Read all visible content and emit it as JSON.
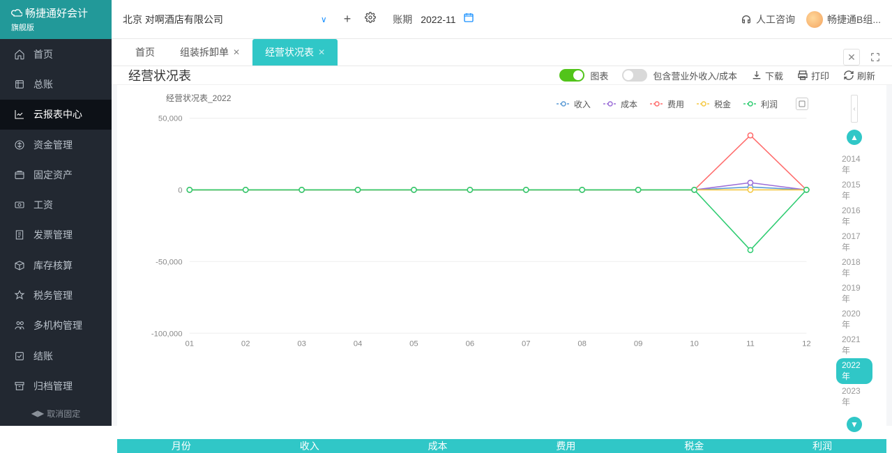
{
  "header": {
    "logo": "畅捷通好会计",
    "logo_sub": "旗舰版",
    "company": "北京 对啊酒店有限公司",
    "period_label": "账期",
    "period_value": "2022-11",
    "consult": "人工咨询",
    "user": "畅捷通B组..."
  },
  "sidebar": {
    "items": [
      {
        "icon": "home",
        "label": "首页"
      },
      {
        "icon": "ledger",
        "label": "总账"
      },
      {
        "icon": "report",
        "label": "云报表中心"
      },
      {
        "icon": "fund",
        "label": "资金管理"
      },
      {
        "icon": "asset",
        "label": "固定资产"
      },
      {
        "icon": "salary",
        "label": "工资"
      },
      {
        "icon": "invoice",
        "label": "发票管理"
      },
      {
        "icon": "stock",
        "label": "库存核算"
      },
      {
        "icon": "tax",
        "label": "税务管理"
      },
      {
        "icon": "org",
        "label": "多机构管理"
      },
      {
        "icon": "close-period",
        "label": "结账"
      },
      {
        "icon": "archive",
        "label": "归档管理"
      }
    ],
    "active_index": 2,
    "pin_label": "取消固定"
  },
  "tabs": {
    "items": [
      {
        "label": "首页",
        "closable": false
      },
      {
        "label": "组装拆卸单",
        "closable": true
      },
      {
        "label": "经营状况表",
        "closable": true
      }
    ],
    "active_index": 2
  },
  "page": {
    "title": "经营状况表",
    "toggle_chart": {
      "label": "图表",
      "on": true
    },
    "toggle_other": {
      "label": "包含营业外收入/成本",
      "on": false
    },
    "download": "下载",
    "print": "打印",
    "refresh": "刷新"
  },
  "chart": {
    "title": "经营状况表_2022",
    "type": "line",
    "categories": [
      "01",
      "02",
      "03",
      "04",
      "05",
      "06",
      "07",
      "08",
      "09",
      "10",
      "11",
      "12"
    ],
    "ylim": [
      -100000,
      50000
    ],
    "yticks": [
      -100000,
      -50000,
      0,
      50000
    ],
    "ytick_labels": [
      "-100,000",
      "-50,000",
      "0",
      "50,000"
    ],
    "series": [
      {
        "name": "收入",
        "color": "#5b9bd5",
        "values": [
          0,
          0,
          0,
          0,
          0,
          0,
          0,
          0,
          0,
          0,
          2000,
          0
        ]
      },
      {
        "name": "成本",
        "color": "#9b6dd7",
        "values": [
          0,
          0,
          0,
          0,
          0,
          0,
          0,
          0,
          0,
          0,
          5000,
          0
        ]
      },
      {
        "name": "费用",
        "color": "#ff6b6b",
        "values": [
          0,
          0,
          0,
          0,
          0,
          0,
          0,
          0,
          0,
          0,
          38000,
          0
        ]
      },
      {
        "name": "税金",
        "color": "#f5c842",
        "values": [
          0,
          0,
          0,
          0,
          0,
          0,
          0,
          0,
          0,
          0,
          0,
          0
        ]
      },
      {
        "name": "利润",
        "color": "#2ecc71",
        "values": [
          0,
          0,
          0,
          0,
          0,
          0,
          0,
          0,
          0,
          0,
          -42000,
          0
        ]
      }
    ],
    "grid_color": "#eeeeee",
    "axis_color": "#cccccc",
    "background": "#ffffff",
    "marker_radius": 3.5,
    "line_width": 1.5,
    "label_fontsize": 11
  },
  "years": {
    "items": [
      "2014年",
      "2015年",
      "2016年",
      "2017年",
      "2018年",
      "2019年",
      "2020年",
      "2021年",
      "2022年",
      "2023年"
    ],
    "active": "2022年"
  },
  "summary": {
    "columns": [
      "月份",
      "收入",
      "成本",
      "费用",
      "税金",
      "利润"
    ]
  }
}
